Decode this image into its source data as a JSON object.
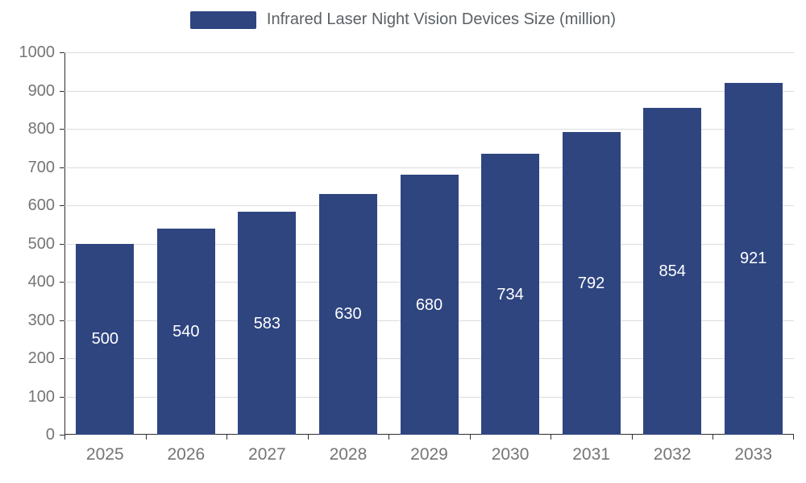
{
  "chart_data": {
    "type": "bar",
    "title": "Infrared Laser Night Vision Devices Size (million)",
    "categories": [
      "2025",
      "2026",
      "2027",
      "2028",
      "2029",
      "2030",
      "2031",
      "2032",
      "2033"
    ],
    "values": [
      500,
      540,
      583,
      630,
      680,
      734,
      792,
      854,
      921
    ],
    "xlabel": "",
    "ylabel": "",
    "ylim": [
      0,
      1000
    ],
    "ytick_step": 100,
    "grid": true,
    "legend_position": "top-center",
    "value_labels_inside_bars": true,
    "colors": {
      "bar": "#2f4580",
      "value_label": "#ffffff",
      "axis_text": "#757575",
      "legend_text": "#5b6166",
      "axis_line": "#2f2f2f",
      "gridline": "#dcdcdc"
    }
  }
}
